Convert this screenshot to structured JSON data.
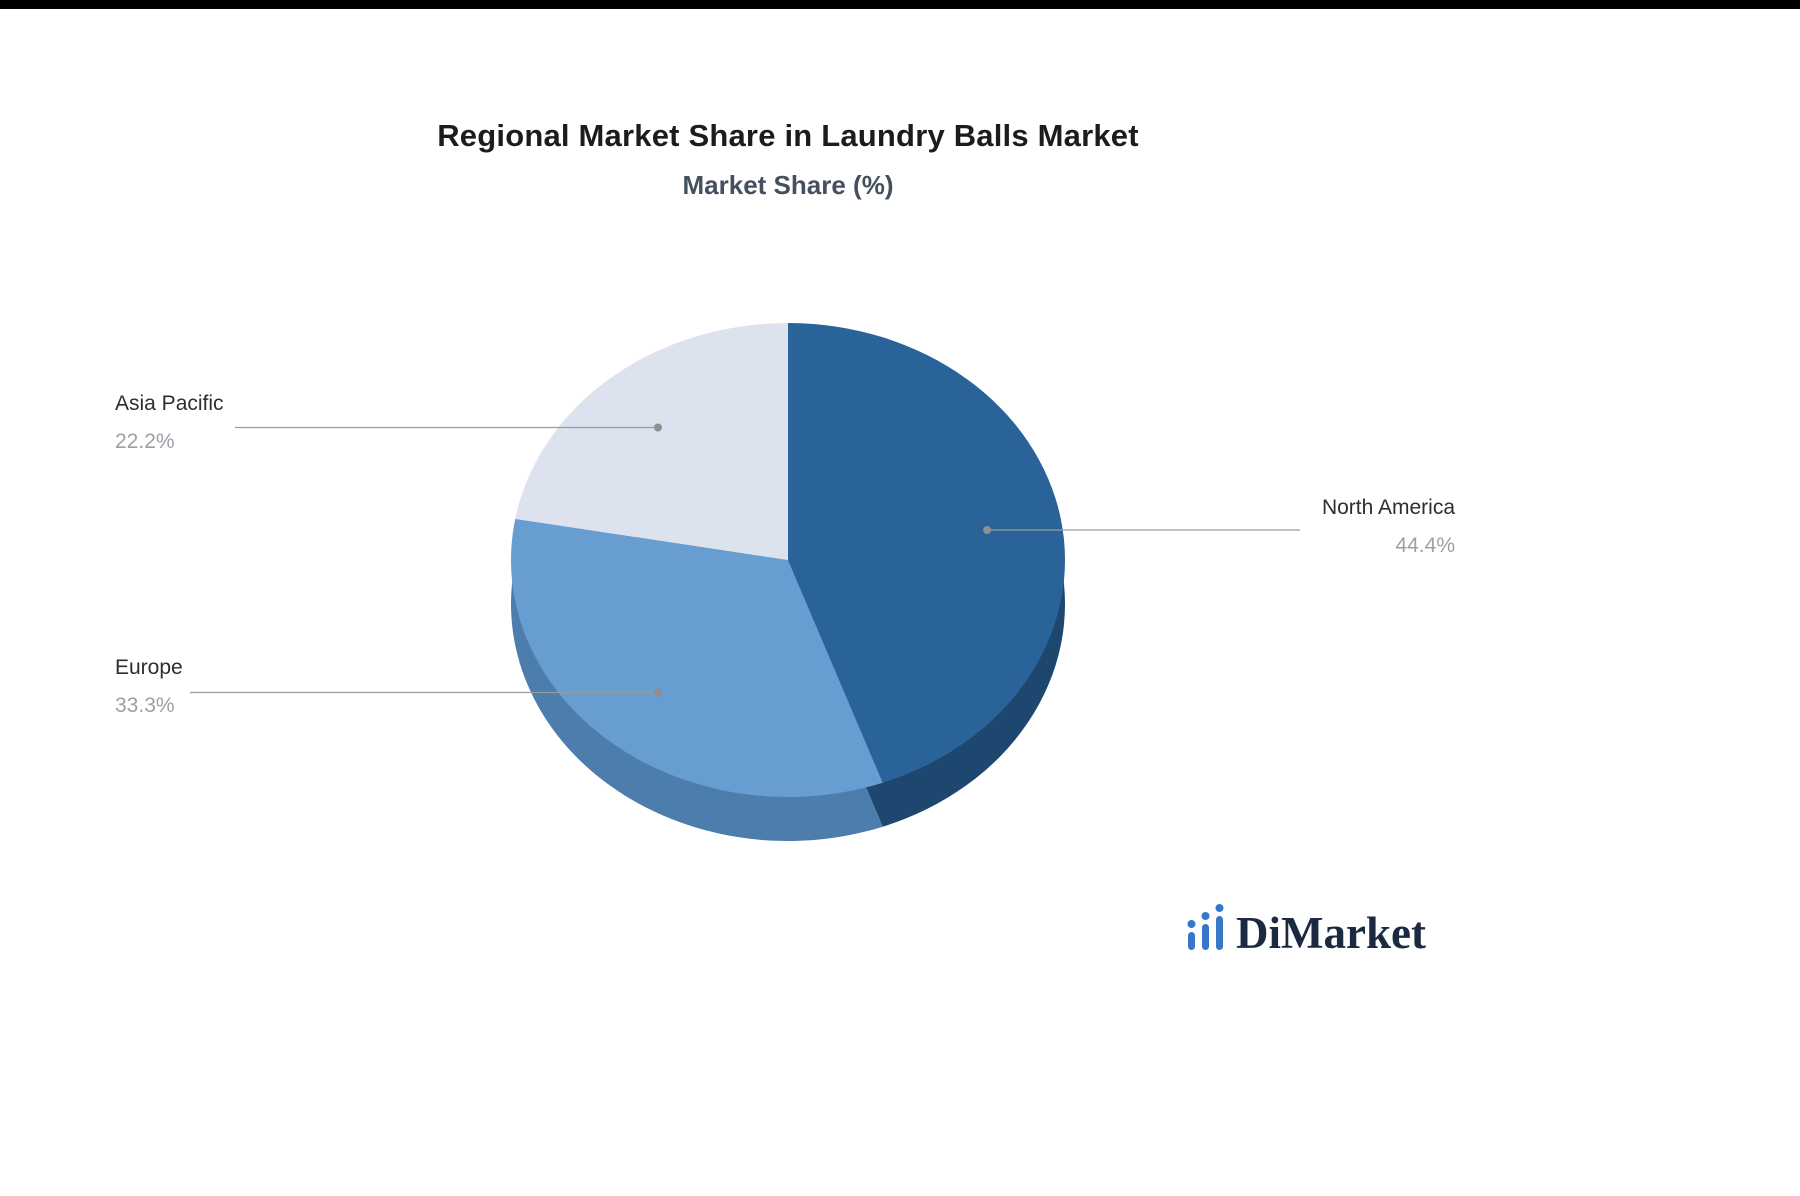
{
  "page": {
    "title": "Regional Market Share in Laundry Balls Market",
    "subtitle": "Market Share (%)"
  },
  "chart_data": {
    "type": "pie",
    "title": "Regional Market Share in Laundry Balls Market",
    "subtitle": "Market Share (%)",
    "unit": "%",
    "direction": "clockwise",
    "start_angle_deg": 0,
    "legend_position": "none",
    "labels_outside": true,
    "style": "3d-pie",
    "slices": [
      {
        "label": "North America",
        "value": 44.4,
        "pct_label": "44.4%",
        "color": "#2A629A",
        "side_color": "#1E4770"
      },
      {
        "label": "Europe",
        "value": 33.3,
        "pct_label": "33.3%",
        "color": "#689DD2",
        "side_color": "#4C7DAC"
      },
      {
        "label": "Asia Pacific",
        "value": 22.2,
        "pct_label": "22.2%",
        "color": "#DDE3EE",
        "side_color": "#B9C3D5"
      }
    ]
  },
  "branding": {
    "logo_text": "DiMarket",
    "logo_icon": "bar-chart-icon",
    "logo_text_color": "#1B2A41",
    "logo_icon_color": "#3577C8"
  },
  "colors": {
    "background": "#FFFFFF",
    "top_bar": "#000000",
    "leader_line": "#9B9B9B",
    "label_text": "#2E2E2E",
    "pct_text": "#9AA0A6"
  }
}
